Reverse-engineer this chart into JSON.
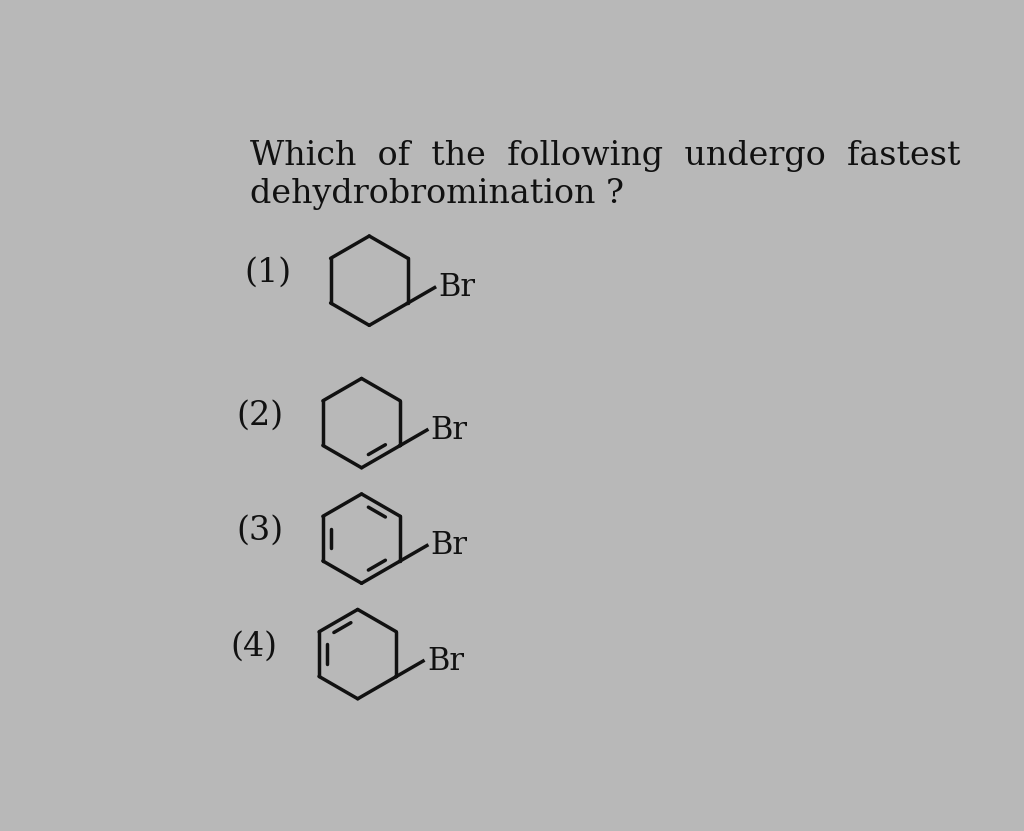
{
  "title_line1": "Which  of  the  following  undergo  fastest",
  "title_line2": "dehydrobromination ?",
  "background_color": "#b8b8b8",
  "text_color": "#111111",
  "title_fontsize": 24,
  "label_fontsize": 24,
  "br_fontsize": 22,
  "line_width": 2.5
}
